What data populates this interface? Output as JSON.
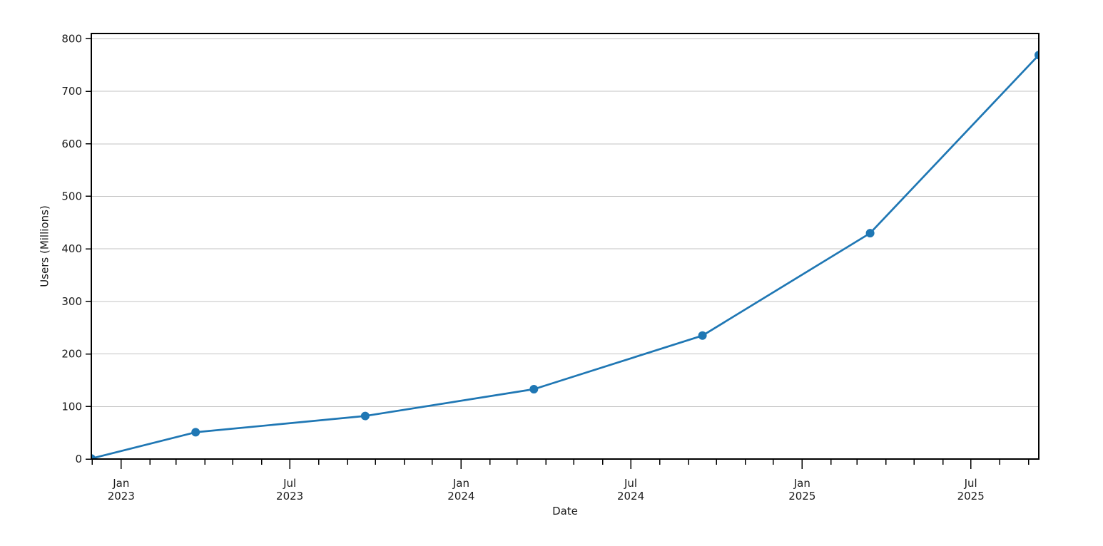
{
  "chart_data": {
    "type": "line",
    "xlabel": "Date",
    "ylabel": "Users (Millions)",
    "x": [
      "2022-11-30",
      "2023-03-22",
      "2023-09-20",
      "2024-03-19",
      "2024-09-16",
      "2025-03-15",
      "2025-09-12"
    ],
    "series": [
      {
        "name": "Users",
        "values": [
          1,
          51,
          82,
          133,
          235,
          430,
          769
        ],
        "color": "#1f77b4",
        "marker": "circle"
      }
    ],
    "xlim": [
      "2022-11-30",
      "2025-09-12"
    ],
    "ylim": [
      0,
      810
    ],
    "yticks": [
      0,
      100,
      200,
      300,
      400,
      500,
      600,
      700,
      800
    ],
    "xticks_major": [
      {
        "date": "2023-01-01",
        "line1": "Jan",
        "line2": "2023"
      },
      {
        "date": "2023-07-01",
        "line1": "Jul",
        "line2": "2023"
      },
      {
        "date": "2024-01-01",
        "line1": "Jan",
        "line2": "2024"
      },
      {
        "date": "2024-07-01",
        "line1": "Jul",
        "line2": "2024"
      },
      {
        "date": "2025-01-01",
        "line1": "Jan",
        "line2": "2025"
      },
      {
        "date": "2025-07-01",
        "line1": "Jul",
        "line2": "2025"
      }
    ],
    "xticks_minor_freq": "monthly",
    "grid": {
      "axis": "y",
      "color": "#c3c3c3"
    },
    "axis_color": "#000000",
    "text_color": "#1b1b1b",
    "background": "#ffffff",
    "legend": null
  }
}
